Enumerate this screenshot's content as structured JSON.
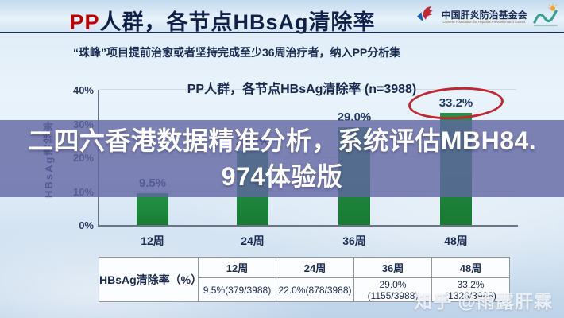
{
  "header": {
    "title_prefix": "PP",
    "title_rest": "人群，各节点HBsAg清除率",
    "logo_org_name": "中国肝炎防治基金会",
    "logo_org_subtext": "Chinese Foundation for Hepatitis Prevention and Control"
  },
  "subtitle": "“珠峰”项目提前治愈或者坚持完成至少36周治疗者，纳入PP分析集",
  "overlay_banner": {
    "line1": "二四六香港数据精准分析，系统评估MBH84.",
    "line2": "974体验版"
  },
  "chart_data": {
    "type": "bar",
    "title": "PP人群，各节点HBsAg清除率 (n=3988)",
    "categories": [
      "12周",
      "24周",
      "36周",
      "48周"
    ],
    "values": [
      9.5,
      22.0,
      29.0,
      33.2
    ],
    "value_labels": [
      "9.5%",
      "22.0%",
      "29.0%",
      "33.2%"
    ],
    "ylabel": "HBsAg清除率",
    "ylim": [
      0,
      40
    ],
    "yticks_percent": [
      0,
      10,
      20,
      30,
      40
    ],
    "ytick_labels": [
      "0%",
      "10%",
      "20%",
      "30%",
      "40%"
    ],
    "grid": "faint-horizontal",
    "legend": "none",
    "highlight": {
      "category": "48周",
      "label": "33.2%",
      "style": "red-ellipse"
    }
  },
  "table": {
    "row_header": "HBsAg清除率（%）",
    "columns": [
      "12周",
      "24周",
      "36周",
      "48周"
    ],
    "values": [
      "9.5%(379/3988)",
      "22.0%(878/3988)",
      "29.0%(1155/3988)",
      "33.2%(1326/3988)"
    ]
  },
  "watermark": "知乎 @雨露肝霖",
  "colors": {
    "accent_red": "#C00000",
    "bar_green": "#1E8A3C",
    "overlay_purple": "#6165A2",
    "circle_red": "#C2262E",
    "title_navy": "#10204A"
  }
}
